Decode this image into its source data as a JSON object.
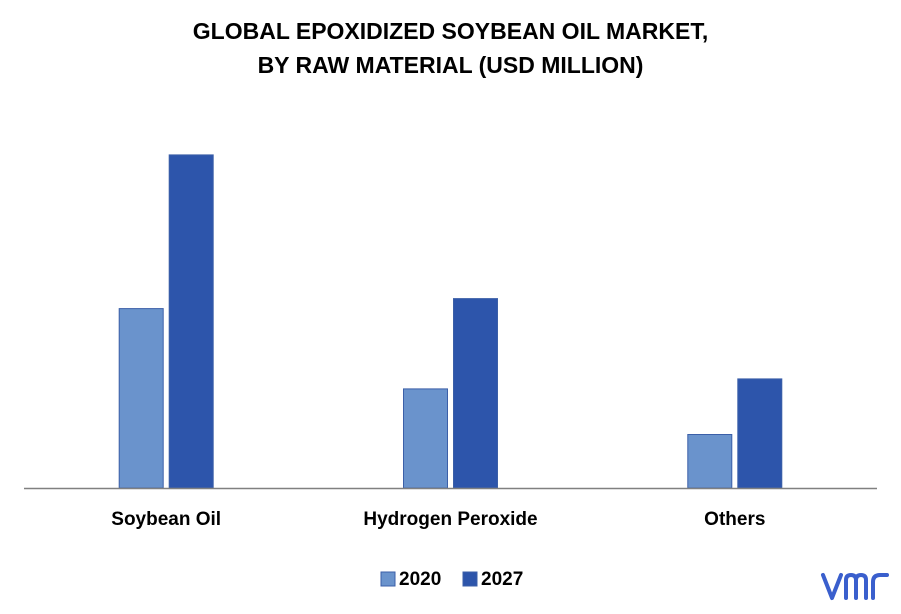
{
  "chart_data": {
    "type": "bar",
    "title_lines": [
      "GLOBAL EPOXIDIZED SOYBEAN OIL MARKET,",
      "BY RAW MATERIAL (USD MILLION)"
    ],
    "categories": [
      "Soybean Oil",
      "Hydrogen Peroxide",
      "Others"
    ],
    "series": [
      {
        "name": "2020",
        "values": [
          181,
          100,
          54
        ]
      },
      {
        "name": "2027",
        "values": [
          336,
          191,
          110
        ]
      }
    ],
    "xlabel": "",
    "ylabel": "",
    "ylim": [
      0,
      350
    ],
    "grid": false,
    "legend_position": "bottom",
    "colors": {
      "2020": "#6a93cc",
      "2027": "#2d55ab",
      "axis": "#808080",
      "text": "#000000",
      "logo": "#3a5fcd"
    }
  },
  "logo": {
    "text": "vmr",
    "icon": "vmr-logo-icon"
  }
}
